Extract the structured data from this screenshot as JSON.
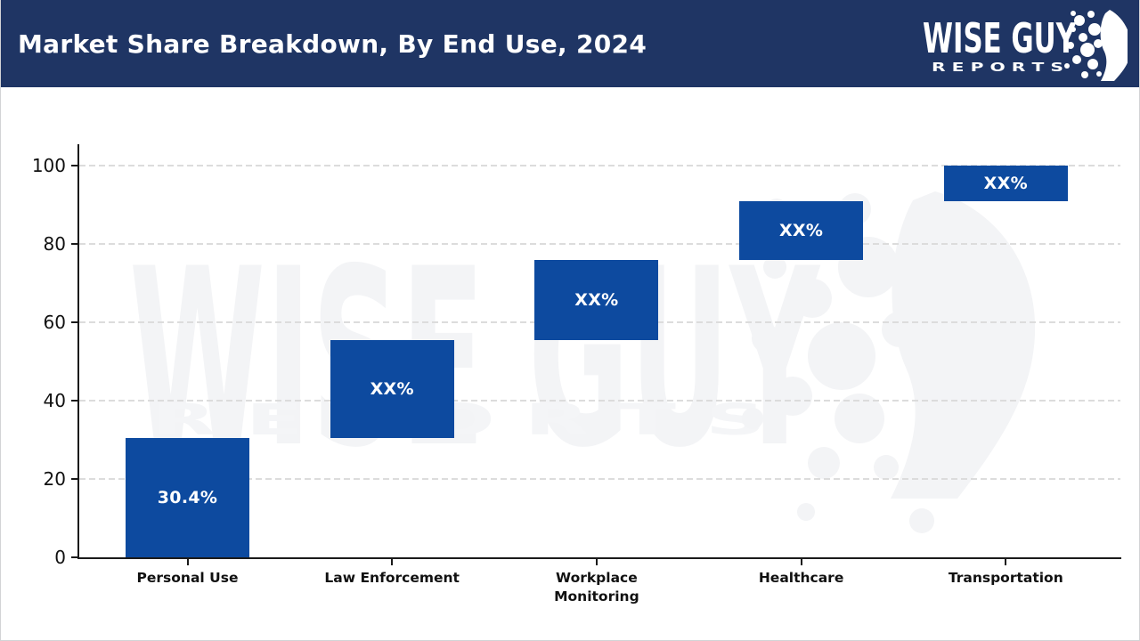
{
  "header": {
    "title": "Market Share Breakdown, By End Use, 2024",
    "logo": {
      "name": "WISE GUY",
      "tagline": "R E P O R T S"
    }
  },
  "watermark": {
    "line1": "WISE GUY",
    "line2": "R E P O R T S"
  },
  "chart_data": {
    "type": "bar",
    "subtype": "waterfall",
    "title": "Market Share Breakdown, By End Use, 2024",
    "categories": [
      "Personal Use",
      "Law Enforcement",
      "Workplace\nMonitoring",
      "Healthcare",
      "Transportation"
    ],
    "series": [
      {
        "name": "Market share (%)",
        "segments": [
          {
            "category": "Personal Use",
            "start": 0,
            "end": 30.4,
            "label": "30.4%"
          },
          {
            "category": "Law Enforcement",
            "start": 30.4,
            "end": 55.5,
            "label": "XX%"
          },
          {
            "category": "Workplace Monitoring",
            "start": 55.5,
            "end": 75.8,
            "label": "XX%"
          },
          {
            "category": "Healthcare",
            "start": 75.8,
            "end": 90.9,
            "label": "XX%"
          },
          {
            "category": "Transportation",
            "start": 90.9,
            "end": 100,
            "label": "XX%"
          }
        ]
      }
    ],
    "ylim": [
      0,
      100
    ],
    "yticks": [
      0,
      20,
      40,
      60,
      80,
      100
    ],
    "xlabel": "",
    "ylabel": "",
    "grid": "horizontal-dashed",
    "legend": "none",
    "bar_color": "#0d4a9f",
    "bar_label_color": "#ffffff"
  },
  "colors": {
    "header_bg": "#1f3564",
    "bar": "#0d4a9f",
    "watermark": "#f3f4f6",
    "grid": "#dcdcdc",
    "axis": "#1a1a1a"
  }
}
